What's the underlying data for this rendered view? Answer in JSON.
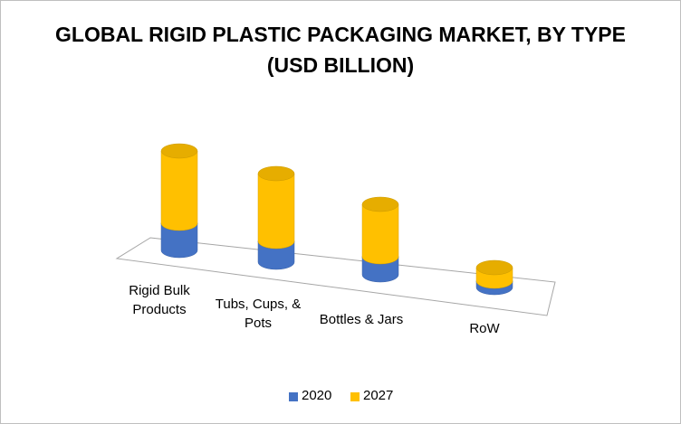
{
  "chart_data": {
    "type": "bar3d-cylinder-stacked",
    "title": "GLOBAL RIGID PLASTIC PACKAGING MARKET, BY TYPE (USD BILLION)",
    "categories": [
      "Rigid Bulk Products",
      "Tubs, Cups, & Pots",
      "Bottles & Jars",
      "RoW"
    ],
    "series": [
      {
        "name": "2020",
        "color": "#4472c4",
        "values": [
          30,
          23,
          20,
          7
        ]
      },
      {
        "name": "2027",
        "color": "#ffc000",
        "values": [
          80,
          75,
          58,
          15
        ]
      }
    ],
    "legend": "bottom"
  }
}
